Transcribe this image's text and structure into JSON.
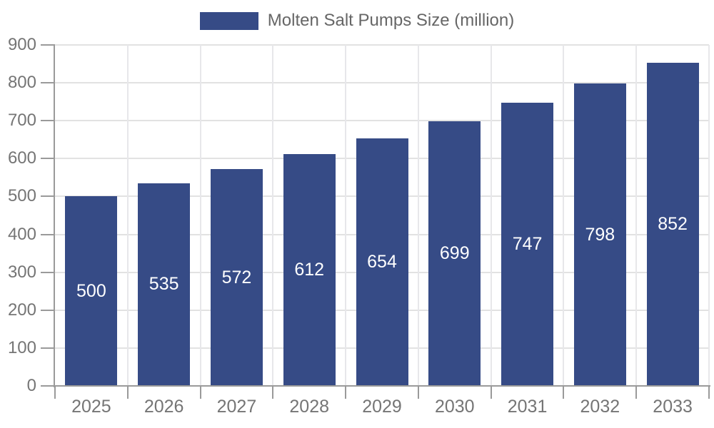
{
  "legend": {
    "label": "Molten Salt Pumps Size (million)"
  },
  "colors": {
    "bar": "#364b86",
    "grid": "#e2e2e2",
    "grid_vertical": "#e7e7ea",
    "axis": "#9a9a9a",
    "text": "#757575",
    "legend_text": "#666666",
    "value_label": "#ffffff",
    "background": "#ffffff"
  },
  "chart_data": {
    "type": "bar",
    "title": "Molten Salt Pumps Size (million)",
    "categories": [
      "2025",
      "2026",
      "2027",
      "2028",
      "2029",
      "2030",
      "2031",
      "2032",
      "2033"
    ],
    "series": [
      {
        "name": "Molten Salt Pumps Size (million)",
        "values": [
          500,
          535,
          572,
          612,
          654,
          699,
          747,
          798,
          852
        ]
      }
    ],
    "values": [
      500,
      535,
      572,
      612,
      654,
      699,
      747,
      798,
      852
    ],
    "xlabel": "",
    "ylabel": "",
    "ylim": [
      0,
      900
    ],
    "yticks": [
      0,
      100,
      200,
      300,
      400,
      500,
      600,
      700,
      800,
      900
    ],
    "grid": true,
    "legend_position": "top",
    "value_label_position": "inside-center"
  }
}
